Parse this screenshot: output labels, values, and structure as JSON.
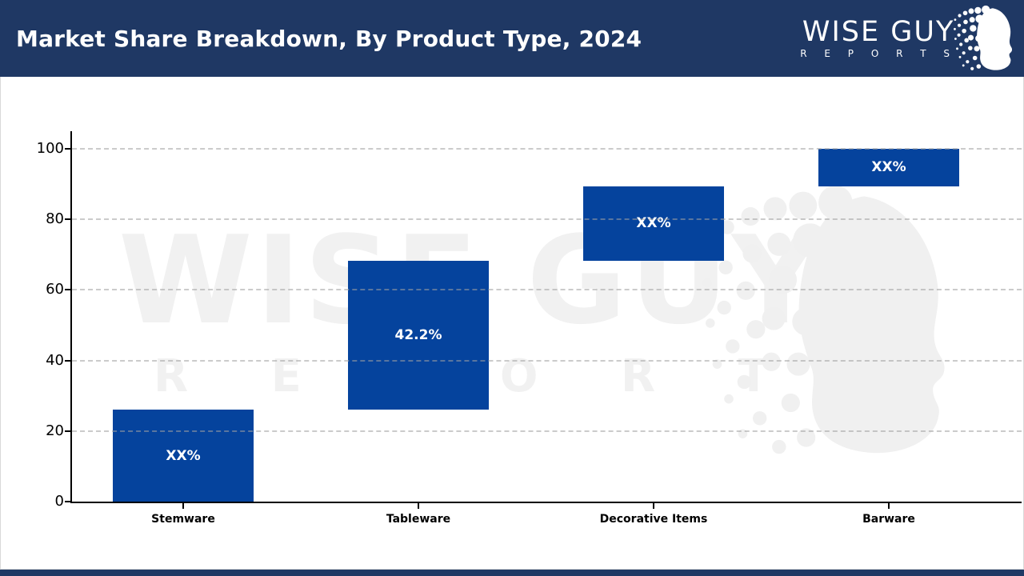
{
  "header": {
    "title": "Market Share Breakdown, By Product Type, 2024",
    "brand": {
      "line1": "WISE GUY",
      "line2": "R E P O R T S"
    }
  },
  "watermark": {
    "line1": "WISE GUY",
    "line2": "R E P O R T S"
  },
  "chart_data": {
    "type": "bar",
    "subtype": "floating-waterfall",
    "title": "Market Share Breakdown, By Product Type, 2024",
    "categories": [
      "Stemware",
      "Tableware",
      "Decorative Items",
      "Barware"
    ],
    "segments": [
      {
        "category": "Stemware",
        "start": 0,
        "end": 26,
        "value": 26,
        "label": "XX%"
      },
      {
        "category": "Tableware",
        "start": 26,
        "end": 68.2,
        "value": 42.2,
        "label": "42.2%"
      },
      {
        "category": "Decorative Items",
        "start": 68.2,
        "end": 89.4,
        "value": 21.2,
        "label": "XX%"
      },
      {
        "category": "Barware",
        "start": 89.4,
        "end": 100,
        "value": 10.6,
        "label": "XX%"
      }
    ],
    "xlabel": "",
    "ylabel": "",
    "ylim": [
      0,
      105
    ],
    "yticks": [
      0,
      20,
      40,
      60,
      80,
      100
    ],
    "grid": "horizontal dashed",
    "legend": "none"
  },
  "colors": {
    "header_bg": "#1f3864",
    "footer_bg": "#1f3864",
    "bar_fill": "#05439d",
    "bar_label_text": "#ffffff",
    "axis": "#000000",
    "grid": "#a0a0a0",
    "watermark": "#f0f0f0",
    "page_bg": "#ffffff",
    "frame_border": "#d9d9d9"
  }
}
